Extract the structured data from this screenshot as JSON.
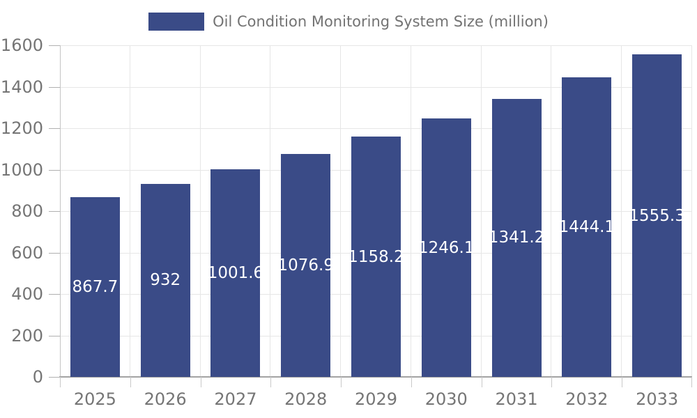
{
  "chart_data": {
    "type": "bar",
    "title": "",
    "legend": "Oil Condition Monitoring System Size (million)",
    "legend_position": "top",
    "categories": [
      "2025",
      "2026",
      "2027",
      "2028",
      "2029",
      "2030",
      "2031",
      "2032",
      "2033"
    ],
    "values": [
      867.7,
      932,
      1001.6,
      1076.9,
      1158.2,
      1246.1,
      1341.2,
      1444.1,
      1555.3
    ],
    "xlabel": "",
    "ylabel": "",
    "ylim": [
      0,
      1600
    ],
    "ytick_step": 200,
    "yticks": [
      0,
      200,
      400,
      600,
      800,
      1000,
      1200,
      1400,
      1600
    ],
    "grid": true,
    "value_labels": "inside-center",
    "colors": {
      "bar": "#3a4b87",
      "grid": "#e6e6e6",
      "axis_line": "#a3a3a3",
      "y_axis_line": "#c4c4c4",
      "tick_label": "#757575",
      "legend_text": "#737373",
      "value_label": "#ffffff",
      "background": "#ffffff"
    }
  }
}
